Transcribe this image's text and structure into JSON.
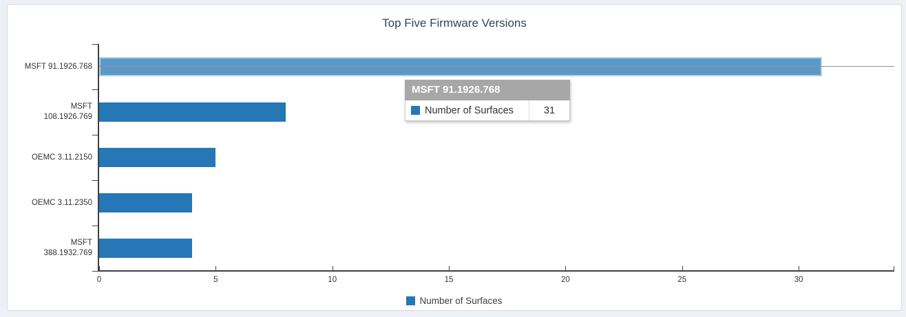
{
  "page": {
    "background_color": "#edf0f5",
    "card_background": "#ffffff",
    "card_border_color": "#d8dce2"
  },
  "chart_data": {
    "type": "bar",
    "orientation": "horizontal",
    "title": "Top Five Firmware Versions",
    "categories": [
      "MSFT 91.1926.768",
      "MSFT 108.1926.769",
      "OEMC 3.11.2150",
      "OEMC 3.11.2350",
      "MSFT 388.1932.769"
    ],
    "category_labels_wrapped": [
      [
        "MSFT 91.1926.768"
      ],
      [
        "MSFT",
        "108.1926.769"
      ],
      [
        "OEMC 3.11.2150"
      ],
      [
        "OEMC 3.11.2350"
      ],
      [
        "MSFT",
        "388.1932.769"
      ]
    ],
    "series": [
      {
        "name": "Number of Surfaces",
        "values": [
          31,
          8,
          5,
          4,
          4
        ],
        "color": "#2578b5"
      }
    ],
    "xlim": [
      0,
      34.1
    ],
    "x_ticks": [
      "0",
      "5",
      "10",
      "15",
      "20",
      "25",
      "30"
    ],
    "grid": false,
    "legend_position": "bottom",
    "highlighted_index": 0,
    "highlight_fill": "#5a99c7",
    "highlight_border": "#b6d0e4",
    "crosshair_color": "#8f8f8f"
  },
  "tooltip": {
    "title": "MSFT 91.1926.768",
    "series_label": "Number of Surfaces",
    "value": "31",
    "header_bg": "#a7a7a7",
    "swatch_color": "#2578b5"
  },
  "legend": {
    "label": "Number of Surfaces",
    "swatch_color": "#2578b5"
  }
}
